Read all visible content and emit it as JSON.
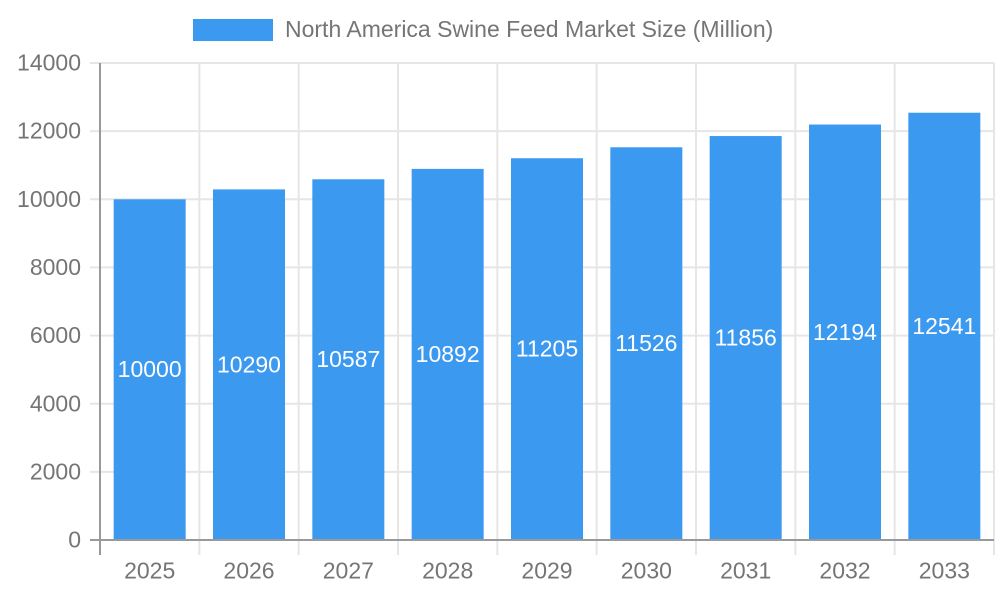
{
  "legend": {
    "label": "North America Swine Feed Market Size (Million)"
  },
  "colors": {
    "bar": "#3b99f0",
    "grid": "#e6e6e6",
    "axis": "#999999",
    "text": "#757575",
    "value_label": "#ffffff",
    "background": "#ffffff"
  },
  "chart_data": {
    "type": "bar",
    "title": "North America Swine Feed Market Size (Million)",
    "categories": [
      "2025",
      "2026",
      "2027",
      "2028",
      "2029",
      "2030",
      "2031",
      "2032",
      "2033"
    ],
    "series": [
      {
        "name": "North America Swine Feed Market Size (Million)",
        "values": [
          10000,
          10290,
          10587,
          10892,
          11205,
          11526,
          11856,
          12194,
          12541
        ]
      }
    ],
    "value_labels_shown": true,
    "xlabel": "",
    "ylabel": "",
    "ylim": [
      0,
      14000
    ],
    "ytick_step": 2000,
    "yticks": [
      0,
      2000,
      4000,
      6000,
      8000,
      10000,
      12000,
      14000
    ],
    "grid": true,
    "legend_position": "top"
  }
}
